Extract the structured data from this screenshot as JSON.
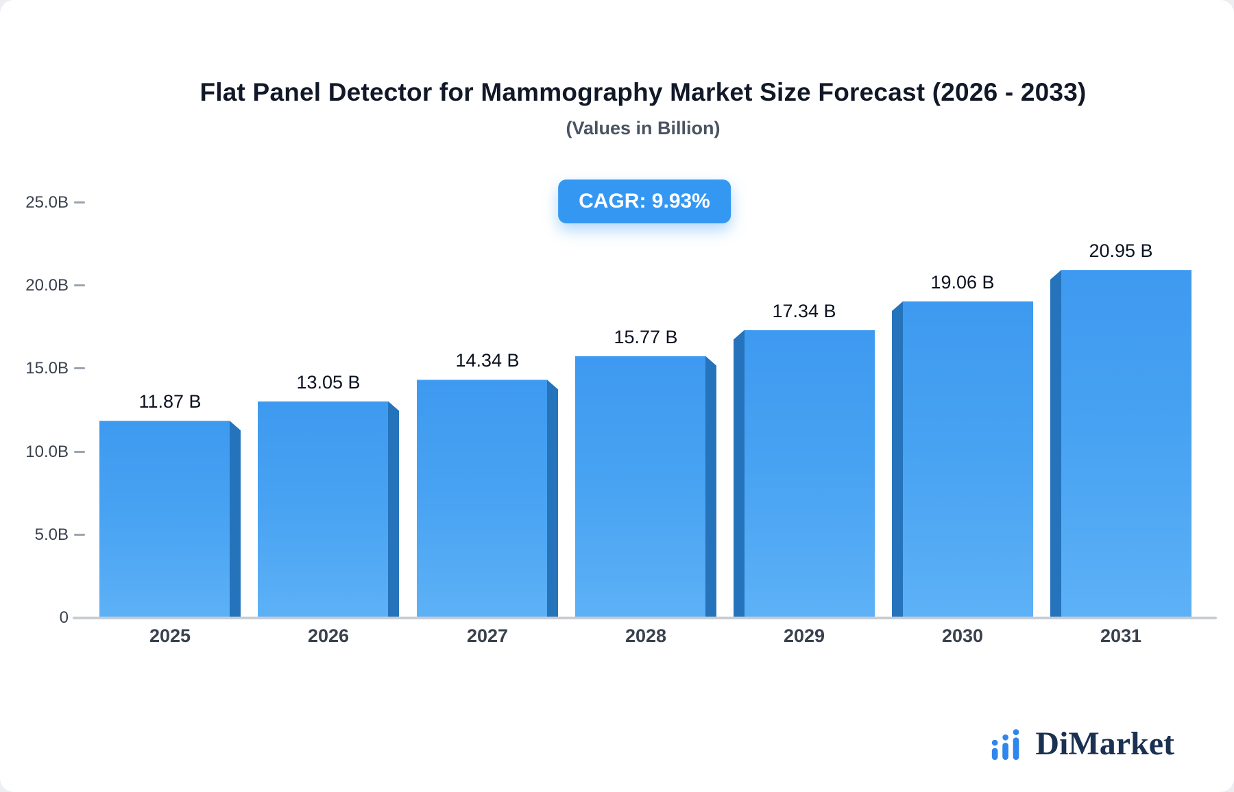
{
  "chart_data": {
    "type": "bar",
    "title": "Flat Panel Detector for Mammography Market Size Forecast (2026 - 2033)",
    "subtitle": "(Values in Billion)",
    "cagr_label": "CAGR: 9.93%",
    "categories": [
      "2025",
      "2026",
      "2027",
      "2028",
      "2029",
      "2030",
      "2031"
    ],
    "values": [
      11.87,
      13.05,
      14.34,
      15.77,
      17.34,
      19.06,
      20.95
    ],
    "value_labels": [
      "11.87 B",
      "13.05 B",
      "14.34 B",
      "15.77 B",
      "17.34 B",
      "19.06 B",
      "20.95 B"
    ],
    "xlabel": "",
    "ylabel": "",
    "ylim": [
      0,
      25
    ],
    "yticks": [
      {
        "label": "25.0B",
        "value": 25
      },
      {
        "label": "20.0B",
        "value": 20
      },
      {
        "label": "15.0B",
        "value": 15
      },
      {
        "label": "10.0B",
        "value": 10
      },
      {
        "label": "5.0B",
        "value": 5
      },
      {
        "label": "0",
        "value": 0
      }
    ],
    "grid": "off",
    "legend": "none",
    "colors": {
      "bar_main": "#3f9df1",
      "bar_main_light": "#5db1f6",
      "bar_side": "#2573bb",
      "badge_background": "#3498f3",
      "badge_text": "#ffffff",
      "axis_line": "#c8ccd2",
      "title_text": "#111827",
      "subtitle_text": "#4a5361",
      "tick_text": "#39414d",
      "value_text": "#0b1220"
    }
  },
  "branding": {
    "logo_text": "DiMarket",
    "logo_text_color": "#1a3152",
    "logo_icon": "bar-chart-icon",
    "logo_icon_color": "#2e86ee"
  }
}
